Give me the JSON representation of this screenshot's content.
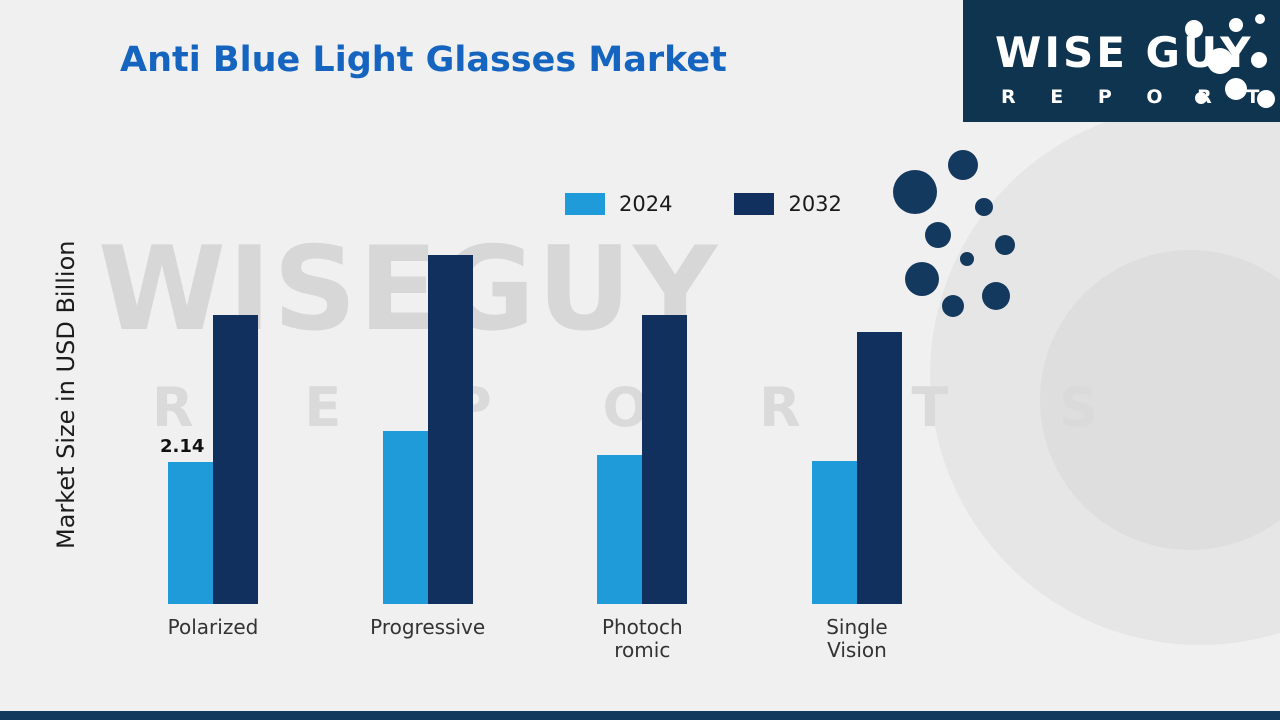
{
  "title": "Anti Blue Light Glasses Market",
  "brand": {
    "line1": "WISE GUY",
    "line2": "R E P O R T S"
  },
  "watermark": {
    "line1": "WISEGUY",
    "line2": "R E P O R T S"
  },
  "colors": {
    "title_blue": "#1565c0",
    "light_blue_2024": "#1e9bd8",
    "navy_2032": "#12305e",
    "background": "#f0f0f0",
    "logo_block": "#0e3450"
  },
  "chart_data": {
    "type": "bar",
    "title": "Anti Blue Light Glasses Market",
    "xlabel": "",
    "ylabel": "Market Size in USD Billion",
    "categories": [
      "Polarized",
      "Progressive",
      "Photochromic",
      "Single Vision"
    ],
    "category_display_lines": [
      [
        "Polarized"
      ],
      [
        "Progressive"
      ],
      [
        "Photoch",
        "romic"
      ],
      [
        "Single",
        "Vision"
      ]
    ],
    "series": [
      {
        "name": "2024",
        "color": "#1e9bd8",
        "values": [
          2.14,
          2.6,
          2.25,
          2.15
        ]
      },
      {
        "name": "2032",
        "color": "#12305e",
        "values": [
          4.35,
          5.25,
          4.35,
          4.1
        ]
      }
    ],
    "data_labels": [
      {
        "series": "2024",
        "category": "Polarized",
        "text": "2.14"
      }
    ],
    "ylim": [
      0,
      5.6
    ],
    "grid": false,
    "legend_position": "top"
  }
}
